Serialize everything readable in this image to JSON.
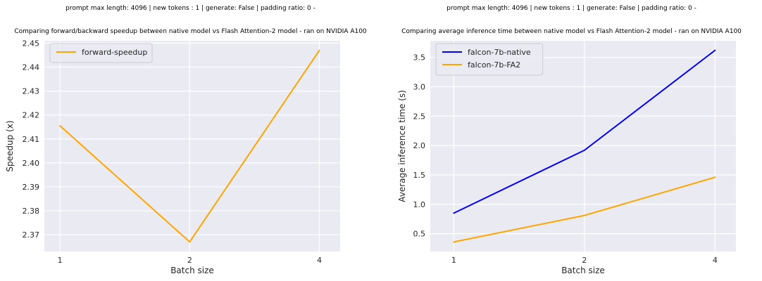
{
  "style": {
    "figure_bg": "#ffffff",
    "axes_bg": "#eaeaf2",
    "grid_color": "#ffffff",
    "tick_text_color": "#262626",
    "label_text_color": "#262626",
    "title_color": "#000000",
    "legend_bg": "#eaeaf2",
    "legend_border": "#cccccc"
  },
  "chart_data": [
    {
      "type": "line",
      "suptitle": "prompt max length: 4096 | new tokens : 1 | generate: False | padding ratio: 0 -",
      "title": "Comparing forward/backward speedup between native model vs Flash Attention-2 model - ran on NVIDIA A100",
      "xlabel": "Batch size",
      "ylabel": "Speedup (x)",
      "categories": [
        "1",
        "2",
        "4"
      ],
      "series": [
        {
          "name": "forward-speedup",
          "color": "#FFA500",
          "values": [
            2.4155,
            2.367,
            2.447
          ]
        }
      ],
      "ylim": [
        2.363,
        2.451
      ],
      "y_tick_values": [
        2.37,
        2.38,
        2.39,
        2.4,
        2.41,
        2.42,
        2.43,
        2.44,
        2.45
      ],
      "y_tick_labels": [
        "2.37",
        "2.38",
        "2.39",
        "2.40",
        "2.41",
        "2.42",
        "2.43",
        "2.44",
        "2.45"
      ],
      "grid": true,
      "legend_position": "upper left",
      "legend_entries": [
        "forward-speedup"
      ]
    },
    {
      "type": "line",
      "suptitle": "prompt max length: 4096 | new tokens : 1 | generate: False | padding ratio: 0 -",
      "title": "Comparing average inference time between native model vs Flash Attention-2 model - ran on NVIDIA A100",
      "xlabel": "Batch size",
      "ylabel": "Average inference time (s)",
      "categories": [
        "1",
        "2",
        "4"
      ],
      "series": [
        {
          "name": "falcon-7b-native",
          "color": "#0000FF",
          "values": [
            0.85,
            1.92,
            3.62
          ]
        },
        {
          "name": "falcon-7b-FA2",
          "color": "#FFA500",
          "values": [
            0.36,
            0.81,
            1.46
          ]
        }
      ],
      "ylim": [
        0.197,
        3.783
      ],
      "y_tick_values": [
        0.5,
        1.0,
        1.5,
        2.0,
        2.5,
        3.0,
        3.5
      ],
      "y_tick_labels": [
        "0.5",
        "1.0",
        "1.5",
        "2.0",
        "2.5",
        "3.0",
        "3.5"
      ],
      "grid": true,
      "legend_position": "upper left",
      "legend_entries": [
        "falcon-7b-native",
        "falcon-7b-FA2"
      ]
    }
  ]
}
